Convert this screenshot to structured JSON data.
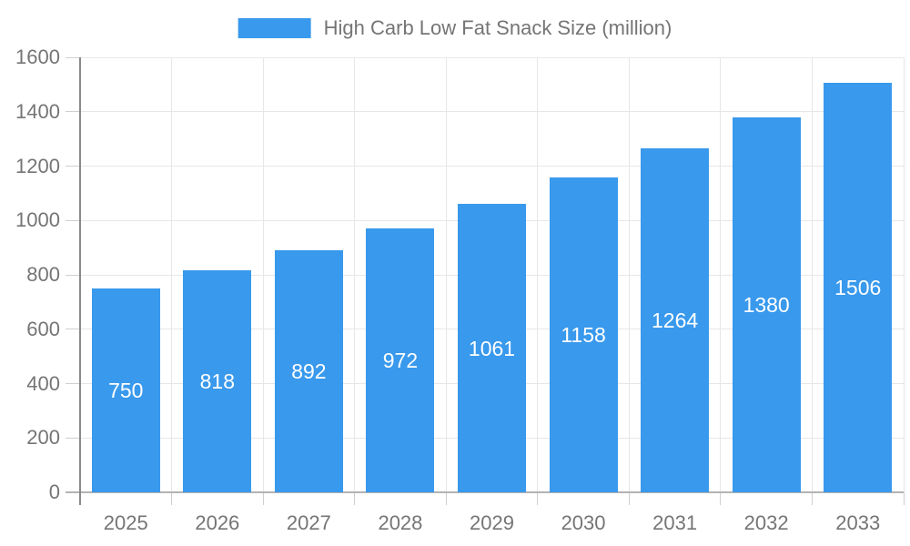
{
  "legend": {
    "label": "High Carb Low Fat Snack Size (million)",
    "swatch_color": "#3999EC"
  },
  "chart_data": {
    "type": "bar",
    "title": "High Carb Low Fat Snack Size (million)",
    "categories": [
      "2025",
      "2026",
      "2027",
      "2028",
      "2029",
      "2030",
      "2031",
      "2032",
      "2033"
    ],
    "series": [
      {
        "name": "High Carb Low Fat Snack Size (million)",
        "values": [
          750,
          818,
          892,
          972,
          1061,
          1158,
          1264,
          1380,
          1506
        ]
      }
    ],
    "xlabel": "",
    "ylabel": "",
    "ylim": [
      0,
      1600
    ],
    "yticks": [
      0,
      200,
      400,
      600,
      800,
      1000,
      1200,
      1400,
      1600
    ],
    "grid": true,
    "legend_position": "top-center",
    "bar_labels_inside": true
  },
  "colors": {
    "bar": "#3999EC",
    "bar_label": "#FFFFFF",
    "axis_text": "#757575",
    "grid_line": "#E7E7E7",
    "tick_line": "#CFCFCF",
    "y_axis_line": "#8A8A8A",
    "x_axis_line": "#B3B3B3",
    "background": "#FFFFFF"
  }
}
